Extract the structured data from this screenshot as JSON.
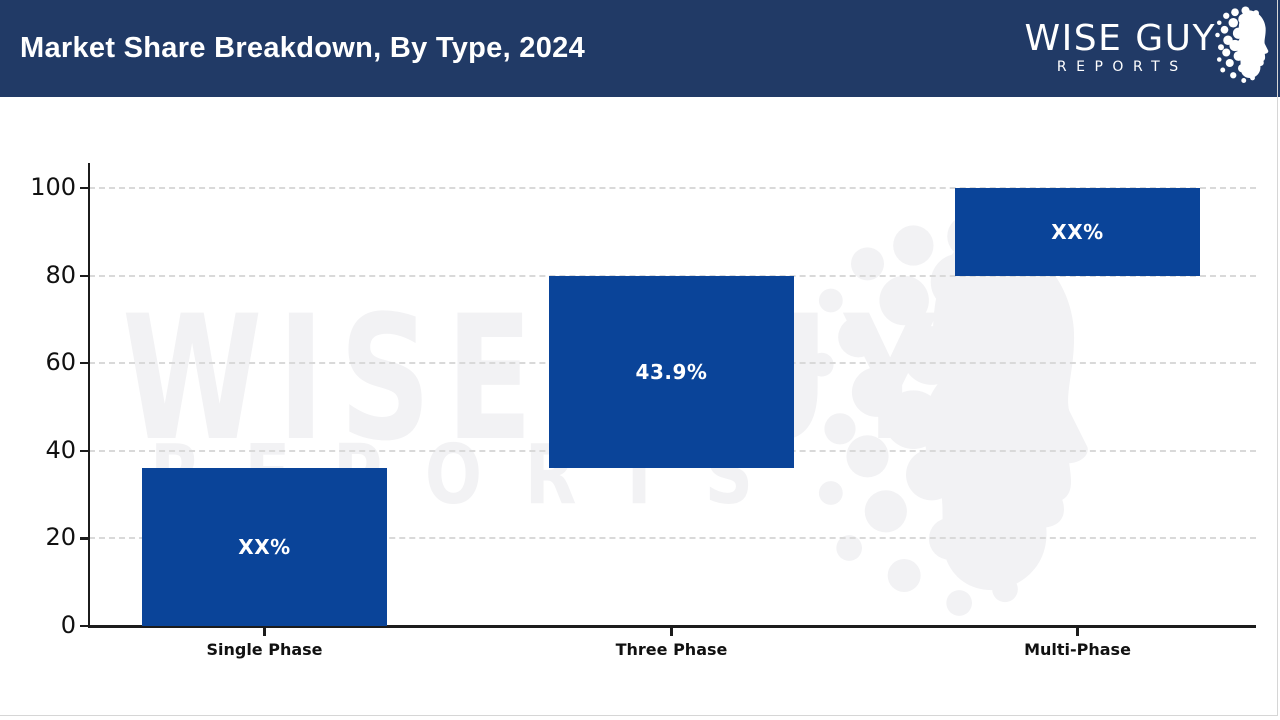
{
  "header": {
    "title": "Market Share Breakdown, By Type, 2024",
    "logo": {
      "line1": "WISE GUY",
      "line2": "REPORTS"
    }
  },
  "watermark": {
    "line1": "WISE GUY",
    "line2": "REPORTS"
  },
  "chart_data": {
    "type": "bar",
    "variant": "floating-waterfall-columns",
    "title": "Market Share Breakdown, By Type, 2024",
    "categories": [
      "Single Phase",
      "Three Phase",
      "Multi-Phase"
    ],
    "segments": [
      {
        "category": "Single Phase",
        "start": 0,
        "end": 36,
        "value_label": "XX%"
      },
      {
        "category": "Three Phase",
        "start": 36,
        "end": 79.9,
        "value_label": "43.9%"
      },
      {
        "category": "Multi-Phase",
        "start": 80,
        "end": 100,
        "value_label": "XX%"
      }
    ],
    "values": [
      36,
      43.9,
      20.1
    ],
    "xlabel": "",
    "ylabel": "",
    "ylim": [
      0,
      100
    ],
    "yticks": [
      0,
      20,
      40,
      60,
      80,
      100
    ],
    "grid": "horizontal-dashed",
    "legend": "none",
    "colors": {
      "bar": "#0a4499",
      "bar_label": "#ffffff",
      "grid": "#d9d9d9",
      "axis": "#1c1c1c",
      "tick_label": "#111111",
      "header_bg": "#213a66",
      "watermark": "#f2f2f4"
    }
  }
}
